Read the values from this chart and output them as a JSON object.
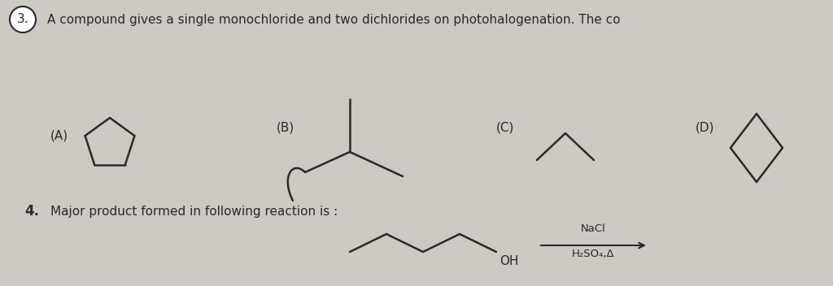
{
  "bg_color": "#cdc9c3",
  "text_color": "#2a2a2a",
  "title_q3_text": "A compound gives a single monochloride and two dichlorides on photohalogenation. The co",
  "title_q4_num": "4.",
  "title_q4_text": "Major product formed in following reaction is :",
  "label_A": "(A)",
  "label_B": "(B)",
  "label_C": "(C)",
  "label_D": "(D)",
  "nacl_text": "NaCl",
  "h2so4_text": "H₂SO₄,Δ",
  "oh_text": "OH"
}
